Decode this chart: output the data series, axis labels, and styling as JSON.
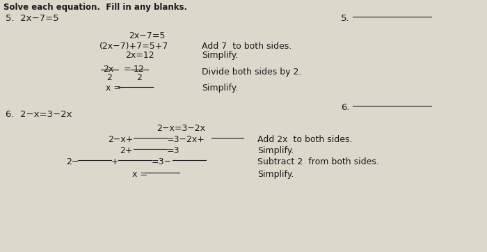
{
  "bg_color": "#ddd8cc",
  "text_color": "#1a1a1a",
  "header": "Solve each equation.  Fill in any blanks.",
  "p5_label": "5.  2x−7=5",
  "ans5_label": "5.",
  "p5_line1": "2x−7=5",
  "p5_line2": "(2x−7)+7=5+7",
  "p5_line2_hint": "Add 7  to both sides.",
  "p5_line3": "2x=12",
  "p5_line3_hint": "Simplify.",
  "frac_num_left": "2x",
  "frac_num_right": "12",
  "frac_den_left": "2",
  "frac_den_right": "2",
  "frac_hint": "Divide both sides by 2.",
  "xeq_hint": "Simplify.",
  "p6_label": "6.  2−x=3−2x",
  "ans6_label": "6.",
  "p6_line1": "2−x=3−2x",
  "p6_line2a": "2−x+",
  "p6_line2b": "=3−2x+",
  "p6_line2_hint": "Add 2x  to both sides.",
  "p6_line3a": "2+",
  "p6_line3b": "=3",
  "p6_line3_hint": "Simplify.",
  "p6_line4a": "2−",
  "p6_line4b": "+",
  "p6_line4c": "=3−",
  "p6_line4_hint": "Subtract 2  from both sides.",
  "p6_line5a": "x =",
  "p6_line5_hint": "Simplify."
}
